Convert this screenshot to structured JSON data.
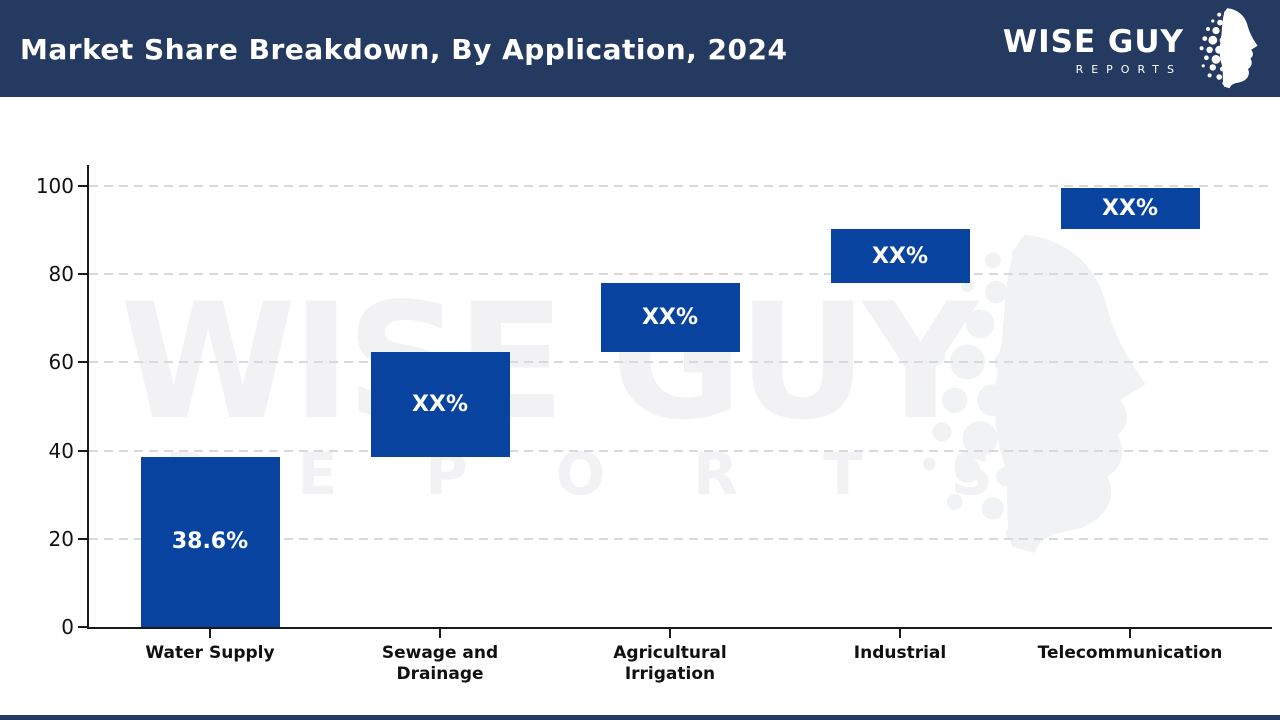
{
  "header": {
    "title": "Market Share Breakdown, By Application, 2024",
    "bg_color": "#253A60",
    "logo": {
      "wordmark": "WISE GUY",
      "subtext": "REPORTS",
      "icon": "face-profile-dots-icon"
    }
  },
  "watermark": {
    "wordmark": "WISE GUY",
    "subtext": "REPORTS",
    "icon": "face-profile-dots-icon",
    "color": "#F2F2F4"
  },
  "chart_data": {
    "type": "bar",
    "subtype": "waterfall",
    "title": "Market Share Breakdown, By Application, 2024",
    "categories": [
      "Water Supply",
      "Sewage and Drainage",
      "Agricultural Irrigation",
      "Industrial",
      "Telecommunication"
    ],
    "category_lines": [
      [
        "Water Supply"
      ],
      [
        "Sewage and",
        "Drainage"
      ],
      [
        "Agricultural",
        "Irrigation"
      ],
      [
        "Industrial"
      ],
      [
        "Telecommunication"
      ]
    ],
    "segments": [
      {
        "category": "Water Supply",
        "start": 0,
        "end": 38.6,
        "label": "38.6%"
      },
      {
        "category": "Sewage and Drainage",
        "start": 38.6,
        "end": 62.3,
        "label": "XX%"
      },
      {
        "category": "Agricultural Irrigation",
        "start": 62.3,
        "end": 77.9,
        "label": "XX%"
      },
      {
        "category": "Industrial",
        "start": 77.9,
        "end": 90.3,
        "label": "XX%"
      },
      {
        "category": "Telecommunication",
        "start": 90.3,
        "end": 99.5,
        "label": "XX%"
      }
    ],
    "xlabel": "",
    "ylabel": "",
    "ylim": [
      0,
      100
    ],
    "yticks": [
      0,
      20,
      40,
      60,
      80,
      100
    ],
    "grid": "horizontal-dashed",
    "legend": "none",
    "bar_color": "#0943A0",
    "bar_label_color": "#FFFFFF",
    "axis_color": "#1A1A1A"
  }
}
